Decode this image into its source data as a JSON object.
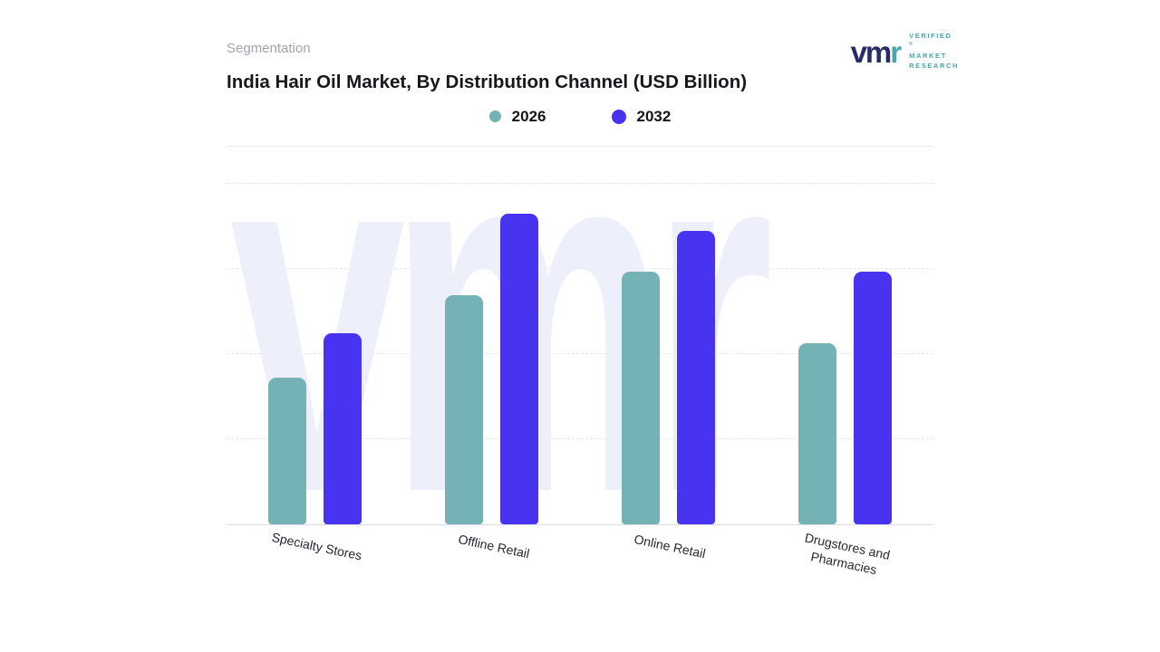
{
  "header": {
    "section_label": "Segmentation"
  },
  "logo": {
    "mark_vm": "vm",
    "mark_r": "r",
    "line1": "VERIFIED",
    "registered": "®",
    "line2": "MARKET",
    "line3": "RESEARCH"
  },
  "chart_data": {
    "type": "bar",
    "title": "India Hair Oil Market, By Distribution Channel (USD Billion)",
    "categories": [
      "Specialty Stores",
      "Offline Retail",
      "Online Retail",
      "Drugstores and Pharmacies"
    ],
    "series": [
      {
        "name": "2026",
        "color": "#74b2b6",
        "values": [
          4.3,
          6.7,
          7.4,
          5.3
        ]
      },
      {
        "name": "2032",
        "color": "#4733f0",
        "values": [
          5.6,
          9.1,
          8.6,
          7.4
        ]
      }
    ],
    "ylim": [
      0,
      10
    ],
    "y_axis_labels_visible": false,
    "gridlines": "dashed-horizontal",
    "legend_position": "top-center",
    "watermark_text": "vmr",
    "accent_colors": {
      "teal": "#74b2b6",
      "indigo": "#4733f0"
    }
  }
}
